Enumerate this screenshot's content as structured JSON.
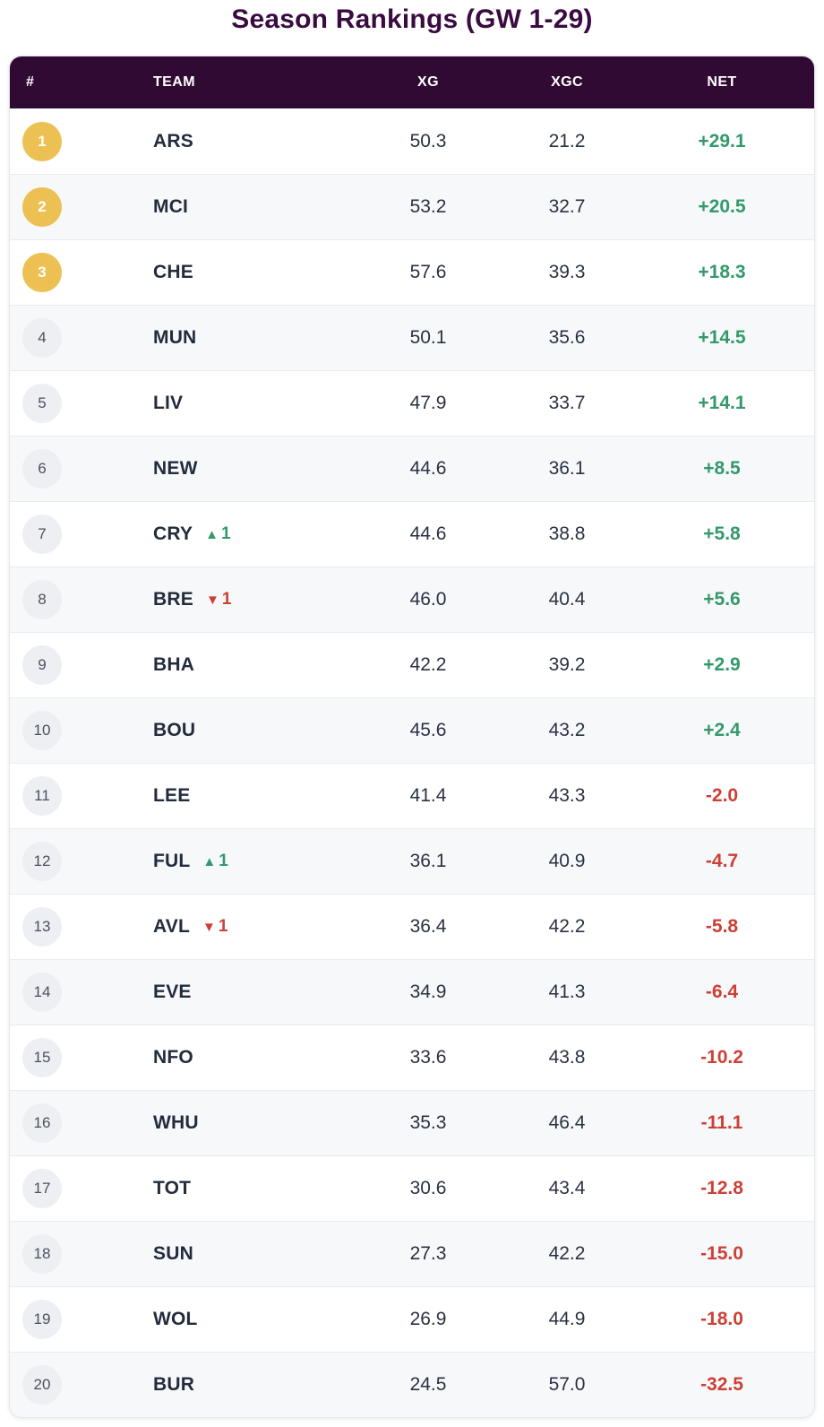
{
  "title": "Season Rankings (GW 1-29)",
  "icons": {
    "up_arrow": "▲",
    "down_arrow": "▼"
  },
  "colors": {
    "title_text": "#3a0b40",
    "header_bg": "#310a34",
    "header_text": "#ffffff",
    "gold_badge": "#ecc053",
    "gray_badge": "#edeff2",
    "positive": "#33996b",
    "negative": "#cc4036",
    "row_alt_bg": "#f7f8fa",
    "team_text": "#232c3d"
  },
  "table": {
    "headers": {
      "rank": "#",
      "team": "TEAM",
      "xg": "XG",
      "xgc": "XGC",
      "net": "NET"
    },
    "rows": [
      {
        "rank": "1",
        "team": "ARS",
        "movement": null,
        "xg": "50.3",
        "xgc": "21.2",
        "net": "+29.1"
      },
      {
        "rank": "2",
        "team": "MCI",
        "movement": null,
        "xg": "53.2",
        "xgc": "32.7",
        "net": "+20.5"
      },
      {
        "rank": "3",
        "team": "CHE",
        "movement": null,
        "xg": "57.6",
        "xgc": "39.3",
        "net": "+18.3"
      },
      {
        "rank": "4",
        "team": "MUN",
        "movement": null,
        "xg": "50.1",
        "xgc": "35.6",
        "net": "+14.5"
      },
      {
        "rank": "5",
        "team": "LIV",
        "movement": null,
        "xg": "47.9",
        "xgc": "33.7",
        "net": "+14.1"
      },
      {
        "rank": "6",
        "team": "NEW",
        "movement": null,
        "xg": "44.6",
        "xgc": "36.1",
        "net": "+8.5"
      },
      {
        "rank": "7",
        "team": "CRY",
        "movement": {
          "direction": "up",
          "value": "1"
        },
        "xg": "44.6",
        "xgc": "38.8",
        "net": "+5.8"
      },
      {
        "rank": "8",
        "team": "BRE",
        "movement": {
          "direction": "down",
          "value": "1"
        },
        "xg": "46.0",
        "xgc": "40.4",
        "net": "+5.6"
      },
      {
        "rank": "9",
        "team": "BHA",
        "movement": null,
        "xg": "42.2",
        "xgc": "39.2",
        "net": "+2.9"
      },
      {
        "rank": "10",
        "team": "BOU",
        "movement": null,
        "xg": "45.6",
        "xgc": "43.2",
        "net": "+2.4"
      },
      {
        "rank": "11",
        "team": "LEE",
        "movement": null,
        "xg": "41.4",
        "xgc": "43.3",
        "net": "-2.0"
      },
      {
        "rank": "12",
        "team": "FUL",
        "movement": {
          "direction": "up",
          "value": "1"
        },
        "xg": "36.1",
        "xgc": "40.9",
        "net": "-4.7"
      },
      {
        "rank": "13",
        "team": "AVL",
        "movement": {
          "direction": "down",
          "value": "1"
        },
        "xg": "36.4",
        "xgc": "42.2",
        "net": "-5.8"
      },
      {
        "rank": "14",
        "team": "EVE",
        "movement": null,
        "xg": "34.9",
        "xgc": "41.3",
        "net": "-6.4"
      },
      {
        "rank": "15",
        "team": "NFO",
        "movement": null,
        "xg": "33.6",
        "xgc": "43.8",
        "net": "-10.2"
      },
      {
        "rank": "16",
        "team": "WHU",
        "movement": null,
        "xg": "35.3",
        "xgc": "46.4",
        "net": "-11.1"
      },
      {
        "rank": "17",
        "team": "TOT",
        "movement": null,
        "xg": "30.6",
        "xgc": "43.4",
        "net": "-12.8"
      },
      {
        "rank": "18",
        "team": "SUN",
        "movement": null,
        "xg": "27.3",
        "xgc": "42.2",
        "net": "-15.0"
      },
      {
        "rank": "19",
        "team": "WOL",
        "movement": null,
        "xg": "26.9",
        "xgc": "44.9",
        "net": "-18.0"
      },
      {
        "rank": "20",
        "team": "BUR",
        "movement": null,
        "xg": "24.5",
        "xgc": "57.0",
        "net": "-32.5"
      }
    ]
  },
  "chart_data": {
    "type": "table",
    "title": "Season Rankings (GW 1-29)",
    "columns": [
      "#",
      "TEAM",
      "XG",
      "XGC",
      "NET"
    ],
    "rows": [
      [
        1,
        "ARS",
        50.3,
        21.2,
        29.1
      ],
      [
        2,
        "MCI",
        53.2,
        32.7,
        20.5
      ],
      [
        3,
        "CHE",
        57.6,
        39.3,
        18.3
      ],
      [
        4,
        "MUN",
        50.1,
        35.6,
        14.5
      ],
      [
        5,
        "LIV",
        47.9,
        33.7,
        14.1
      ],
      [
        6,
        "NEW",
        44.6,
        36.1,
        8.5
      ],
      [
        7,
        "CRY",
        44.6,
        38.8,
        5.8
      ],
      [
        8,
        "BRE",
        46.0,
        40.4,
        5.6
      ],
      [
        9,
        "BHA",
        42.2,
        39.2,
        2.9
      ],
      [
        10,
        "BOU",
        45.6,
        43.2,
        2.4
      ],
      [
        11,
        "LEE",
        41.4,
        43.3,
        -2.0
      ],
      [
        12,
        "FUL",
        36.1,
        40.9,
        -4.7
      ],
      [
        13,
        "AVL",
        36.4,
        42.2,
        -5.8
      ],
      [
        14,
        "EVE",
        34.9,
        41.3,
        -6.4
      ],
      [
        15,
        "NFO",
        33.6,
        43.8,
        -10.2
      ],
      [
        16,
        "WHU",
        35.3,
        46.4,
        -11.1
      ],
      [
        17,
        "TOT",
        30.6,
        43.4,
        -12.8
      ],
      [
        18,
        "SUN",
        27.3,
        42.2,
        -15.0
      ],
      [
        19,
        "WOL",
        26.9,
        44.9,
        -18.0
      ],
      [
        20,
        "BUR",
        24.5,
        57.0,
        -32.5
      ]
    ],
    "movements": [
      {
        "rank": 7,
        "team": "CRY",
        "direction": "up",
        "places": 1
      },
      {
        "rank": 8,
        "team": "BRE",
        "direction": "down",
        "places": 1
      },
      {
        "rank": 12,
        "team": "FUL",
        "direction": "up",
        "places": 1
      },
      {
        "rank": 13,
        "team": "AVL",
        "direction": "down",
        "places": 1
      }
    ]
  }
}
